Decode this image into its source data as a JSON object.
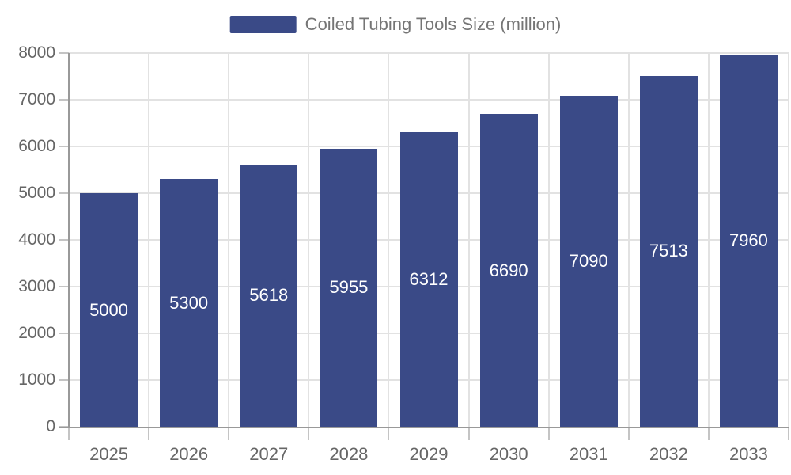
{
  "chart_data": {
    "type": "bar",
    "title": "Coiled Tubing Tools Size (million)",
    "legend": [
      "Coiled Tubing Tools Size (million)"
    ],
    "legend_position": "top-center",
    "categories": [
      "2025",
      "2026",
      "2027",
      "2028",
      "2029",
      "2030",
      "2031",
      "2032",
      "2033"
    ],
    "series": [
      {
        "name": "Coiled Tubing Tools Size (million)",
        "values": [
          5000,
          5300,
          5618,
          5955,
          6312,
          6690,
          7090,
          7513,
          7960
        ]
      }
    ],
    "xlabel": "",
    "ylabel": "",
    "ylim": [
      0,
      8000
    ],
    "yticks": [
      0,
      1000,
      2000,
      3000,
      4000,
      5000,
      6000,
      7000,
      8000
    ],
    "grid": true,
    "value_labels": "inside-center",
    "colors": {
      "bar": "#3A4A87",
      "grid": "#E2E2E2",
      "axis": "#999999",
      "tick": "#C4C4C4",
      "tick_label": "#666666",
      "legend_label": "#757575",
      "value_label": "#FFFFFF",
      "background": "#FFFFFF"
    }
  }
}
